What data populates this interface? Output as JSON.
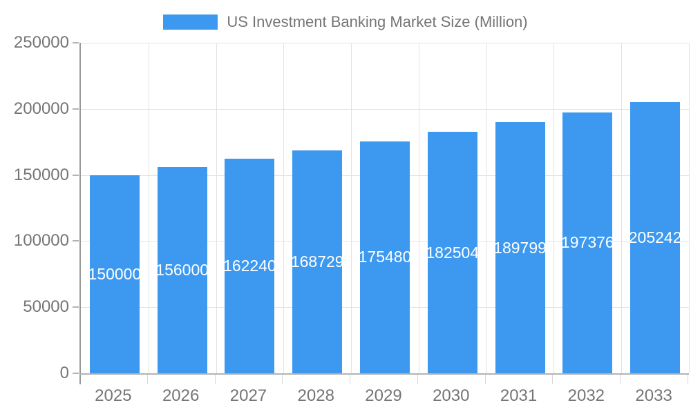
{
  "legend": {
    "label": "US Investment Banking Market Size (Million)"
  },
  "colors": {
    "bar": "#3d99f0",
    "bar_label_text": "#ffffff",
    "axis_text": "#757575",
    "gridline": "#e2e2e2",
    "y_axis_line": "#999999",
    "x_axis_line": "#b3b3b3"
  },
  "chart_data": {
    "type": "bar",
    "title": "US Investment Banking Market Size (Million)",
    "categories": [
      "2025",
      "2026",
      "2027",
      "2028",
      "2029",
      "2030",
      "2031",
      "2032",
      "2033"
    ],
    "values": [
      150000,
      156000,
      162240,
      168729,
      175480,
      182504,
      189799,
      197376,
      205242
    ],
    "bar_labels": [
      "150000",
      "156000",
      "162240",
      "168729",
      "175480",
      "182504",
      "189799",
      "197376",
      "205242"
    ],
    "xlabel": "",
    "ylabel": "",
    "ylim": [
      0,
      250000
    ],
    "y_ticks": [
      0,
      50000,
      100000,
      150000,
      200000,
      250000
    ],
    "y_tick_labels": [
      "0",
      "50000",
      "100000",
      "150000",
      "200000",
      "250000"
    ],
    "grid": true,
    "legend_position": "top",
    "bar_color": "#3d99f0",
    "value_label_position": "inside-center"
  }
}
